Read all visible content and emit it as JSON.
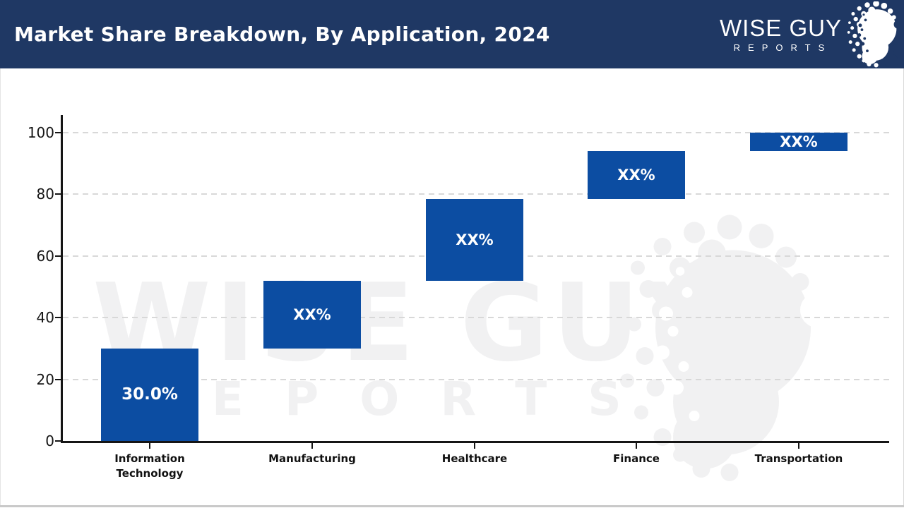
{
  "header": {
    "title": "Market Share Breakdown, By Application, 2024",
    "logo_line1": "WISE GUY",
    "logo_line2": "REPORTS"
  },
  "watermark": {
    "line1": "WISE GUY",
    "line2": "REPORTS"
  },
  "chart_data": {
    "type": "bar",
    "subtype": "waterfall",
    "title": "Market Share Breakdown, By Application, 2024",
    "categories": [
      "Information\nTechnology",
      "Manufacturing",
      "Healthcare",
      "Finance",
      "Transportation"
    ],
    "segments": [
      {
        "category": "Information Technology",
        "start": 0,
        "end": 30,
        "label": "30.0%"
      },
      {
        "category": "Manufacturing",
        "start": 30,
        "end": 52,
        "label": "XX%"
      },
      {
        "category": "Healthcare",
        "start": 52,
        "end": 78.5,
        "label": "XX%"
      },
      {
        "category": "Finance",
        "start": 78.5,
        "end": 94,
        "label": "XX%"
      },
      {
        "category": "Transportation",
        "start": 94,
        "end": 100,
        "label": "XX%"
      }
    ],
    "values": [
      30,
      22,
      26.5,
      15.5,
      6
    ],
    "unit": "%",
    "xlabel": "",
    "ylabel": "",
    "yticks": [
      0,
      20,
      40,
      60,
      80,
      100
    ],
    "ylim": [
      0,
      105
    ],
    "grid": "horizontal-dashed",
    "legend": "none",
    "bar_color": "#0C4DA2",
    "bar_label_color": "#FFFFFF"
  },
  "colors": {
    "header_bg": "#1F3864",
    "bar": "#0C4DA2",
    "gridline": "#D8D8D8",
    "axis": "#151515",
    "watermark": "#F1F1F2",
    "bottom_line": "#C9C9C9"
  }
}
